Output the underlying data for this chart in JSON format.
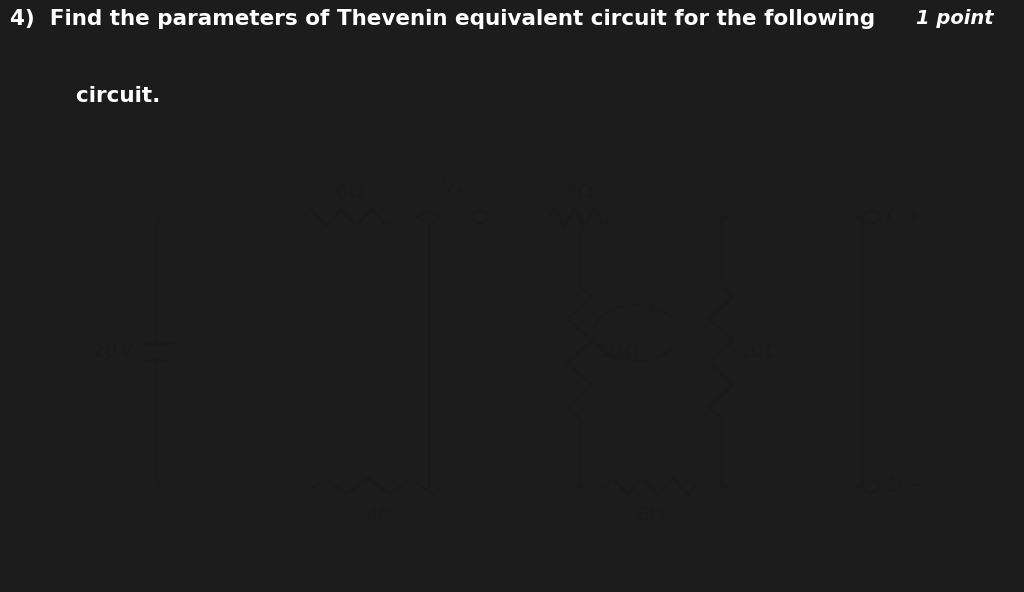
{
  "title_text": "4)  Find the parameters of Thevenin equivalent circuit for the following",
  "title_point": "1 point",
  "subtitle_text": "    circuit.",
  "bg_color": "#1c1c1c",
  "circuit_bg": "#e6e6e6",
  "title_color": "#ffffff",
  "circuit_line_color": "#1a1a1a",
  "title_fontsize": 15.5,
  "point_fontsize": 14,
  "label_fontsize": 14,
  "lw": 1.8
}
